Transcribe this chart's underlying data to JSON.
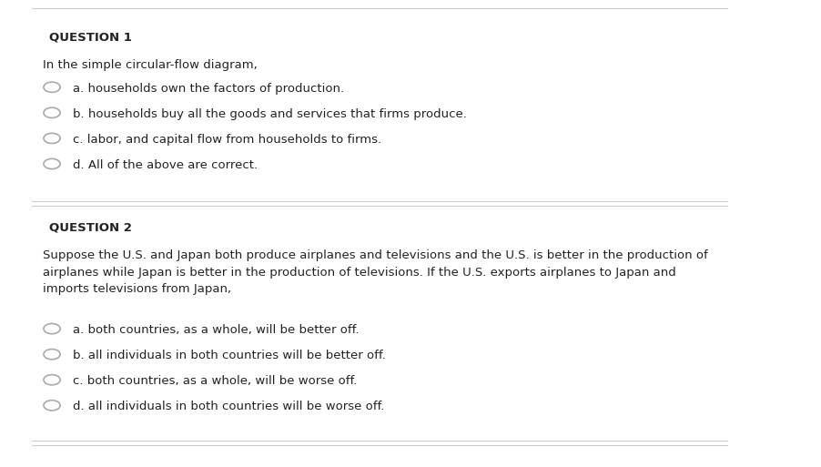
{
  "bg_color": "#ffffff",
  "border_color": "#cccccc",
  "text_color": "#222222",
  "circle_color": "#aaaaaa",
  "q1_label": "QUESTION 1",
  "q1_prompt": "In the simple circular-flow diagram,",
  "q1_options": [
    "a. households own the factors of production.",
    "b. households buy all the goods and services that firms produce.",
    "c. labor, and capital flow from households to firms.",
    "d. All of the above are correct."
  ],
  "q2_label": "QUESTION 2",
  "q2_prompt": "Suppose the U.S. and Japan both produce airplanes and televisions and the U.S. is better in the production of\nairplanes while Japan is better in the production of televisions. If the U.S. exports airplanes to Japan and\nimports televisions from Japan,",
  "q2_options": [
    "a. both countries, as a whole, will be better off.",
    "b. all individuals in both countries will be better off.",
    "c. both countries, as a whole, will be worse off.",
    "d. all individuals in both countries will be worse off."
  ],
  "label_fontsize": 9.5,
  "prompt_fontsize": 9.5,
  "option_fontsize": 9.5,
  "fig_width": 9.03,
  "fig_height": 5.13
}
